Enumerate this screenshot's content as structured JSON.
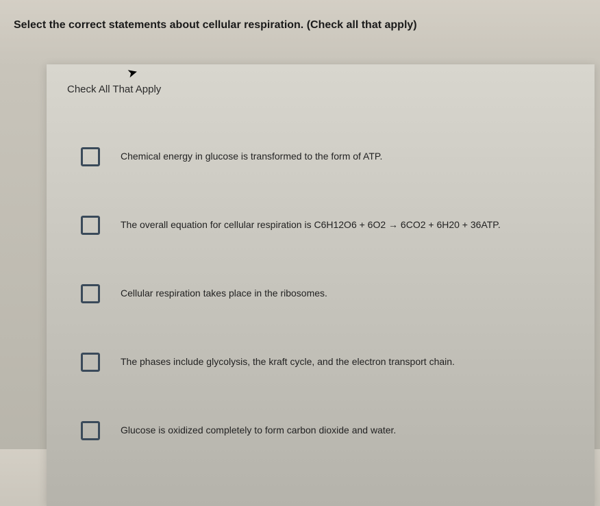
{
  "question": "Select the correct statements about cellular respiration. (Check all that apply)",
  "instruction": "Check All That Apply",
  "options": [
    {
      "label": "Chemical energy in glucose is transformed to the form of ATP."
    },
    {
      "label": "The overall equation for cellular respiration is C6H12O6 + 6O2 → 6CO2 + 6H20 + 36ATP."
    },
    {
      "label": "Cellular respiration takes place in the ribosomes."
    },
    {
      "label": "The phases include glycolysis, the kraft cycle, and the electron transport chain."
    },
    {
      "label": "Glucose is oxidized completely to form carbon dioxide and water."
    }
  ],
  "styling": {
    "background_gradient_top": "#d4cfc5",
    "background_gradient_bottom": "#b5b3ab",
    "checkbox_border": "#3a4a5a",
    "text_color": "#1a1a1a",
    "panel_shadow": "rgba(0,0,0,0.15)"
  }
}
